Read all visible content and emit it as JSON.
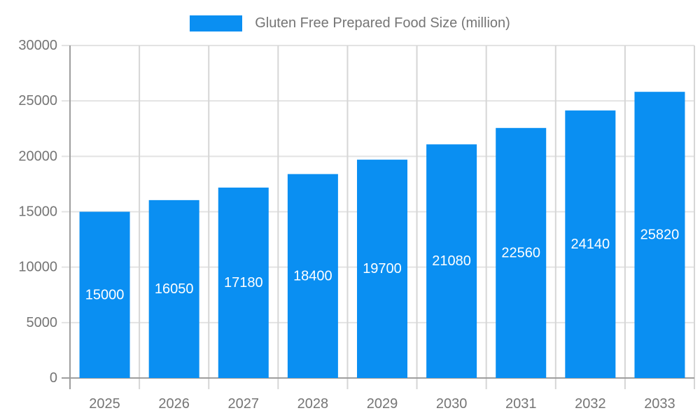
{
  "chart_data": {
    "type": "bar",
    "legend": "Gluten Free Prepared Food Size (million)",
    "legend_position": "top",
    "categories": [
      "2025",
      "2026",
      "2027",
      "2028",
      "2029",
      "2030",
      "2031",
      "2032",
      "2033"
    ],
    "values": [
      15000,
      16050,
      17180,
      18400,
      19700,
      21080,
      22560,
      24140,
      25820
    ],
    "ylim": [
      0,
      30000
    ],
    "yticks": [
      0,
      5000,
      10000,
      15000,
      20000,
      25000,
      30000
    ],
    "xlabel": "",
    "ylabel": "",
    "grid": true,
    "colors": {
      "bar": "#0a8ff2",
      "value_label": "#ffffff",
      "axis_text": "#757575",
      "grid_h": "#e3e3e3",
      "grid_v": "#d6d6d6",
      "axis_line": "#9e9e9e",
      "background": "#ffffff"
    }
  }
}
